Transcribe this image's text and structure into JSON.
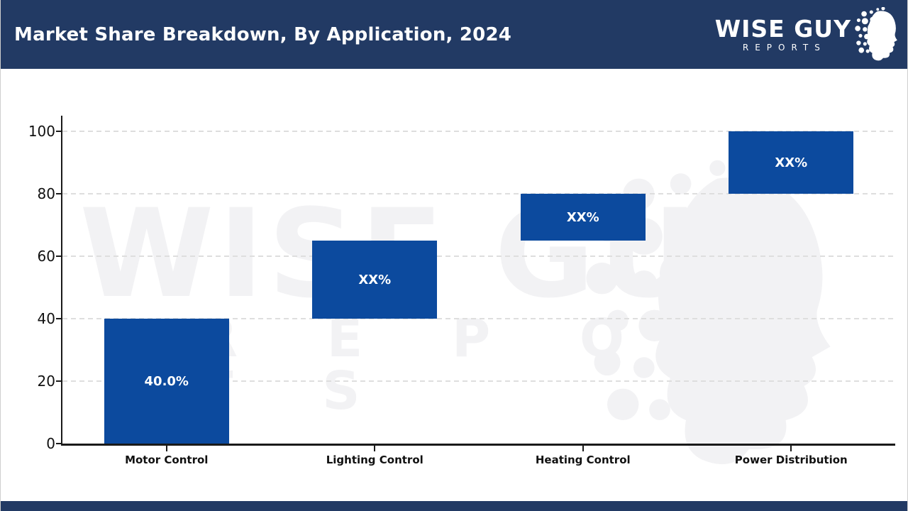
{
  "header": {
    "title": "Market Share Breakdown, By Application, 2024",
    "logo": {
      "line1": "WISE GUY",
      "line2": "REPORTS",
      "head_icon": "head-profile-dots-icon"
    }
  },
  "watermark": {
    "line1": "WISE GUY",
    "line2": "R E P O R T S",
    "head_icon": "head-profile-dots-icon"
  },
  "chart_data": {
    "type": "bar",
    "variant": "waterfall",
    "title": "Market Share Breakdown, By Application, 2024",
    "categories": [
      "Motor Control",
      "Lighting Control",
      "Heating Control",
      "Power Distribution"
    ],
    "bars": [
      {
        "category": "Motor Control",
        "start": 0,
        "end": 40,
        "value": 40.0,
        "label": "40.0%"
      },
      {
        "category": "Lighting Control",
        "start": 40,
        "end": 65,
        "value": 25,
        "label": "XX%"
      },
      {
        "category": "Heating Control",
        "start": 65,
        "end": 80,
        "value": 15,
        "label": "XX%"
      },
      {
        "category": "Power Distribution",
        "start": 80,
        "end": 100,
        "value": 20,
        "label": "XX%"
      }
    ],
    "yticks": [
      0,
      20,
      40,
      60,
      80,
      100
    ],
    "ylim": [
      0,
      105
    ],
    "xlabel": "",
    "ylabel": "",
    "grid": "dashed-horizontal",
    "legend": "none"
  },
  "colors": {
    "header_bg": "#223A64",
    "bar_fill": "#0C4A9E",
    "bar_label": "#FFFFFF",
    "gridline": "#DEDEDE",
    "axis": "#1A1A1A",
    "watermark": "#F2F2F4"
  }
}
